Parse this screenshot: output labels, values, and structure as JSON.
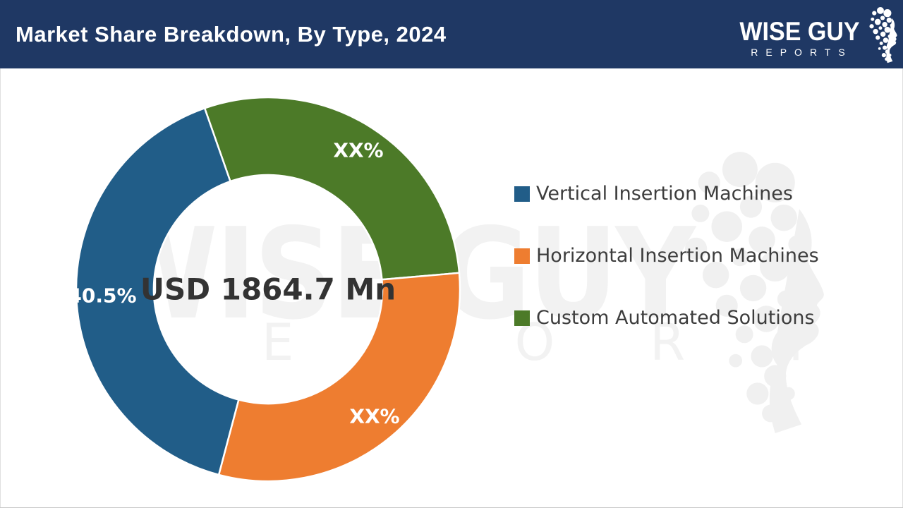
{
  "header": {
    "title": "Market Share Breakdown, By Type, 2024",
    "bg_color": "#1f3864",
    "logo": {
      "line1": "WISE GUY",
      "line2": "REPORTS"
    }
  },
  "watermark": {
    "line1": "WISE GUY",
    "line2": "R E P O R T S"
  },
  "chart_data": {
    "type": "pie",
    "subtype": "donut",
    "title": "Market Share Breakdown, By Type, 2024",
    "center_label": "USD 1864.7 Mn",
    "start_angle_deg": -19.3,
    "segments": [
      {
        "name": "Custom Automated Solutions",
        "value_pct": 29.0,
        "label": "XX%",
        "color": "#4c7a28"
      },
      {
        "name": "Horizontal Insertion Machines",
        "value_pct": 30.5,
        "label": "XX%",
        "color": "#ee7d30"
      },
      {
        "name": "Vertical Insertion Machines",
        "value_pct": 40.5,
        "label": "40.5%",
        "color": "#215d88"
      }
    ],
    "legend_position": "right",
    "legend": [
      {
        "label": "Vertical Insertion Machines",
        "color": "#215d88"
      },
      {
        "label": "Horizontal Insertion Machines",
        "color": "#ee7d30"
      },
      {
        "label": "Custom Automated Solutions",
        "color": "#4c7a28"
      }
    ]
  }
}
